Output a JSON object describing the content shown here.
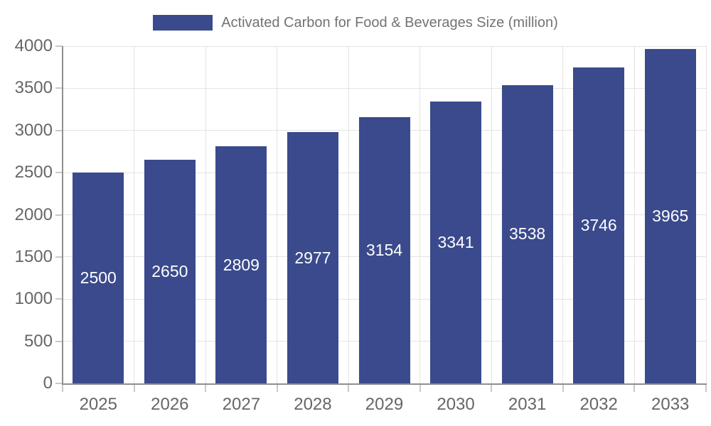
{
  "legend": {
    "label": "Activated Carbon for Food & Beverages Size (million)"
  },
  "colors": {
    "bar": "#3a4a8c",
    "bar_label": "#ffffff",
    "axis_line": "#8f8f8f",
    "tick": "#c9c9c9",
    "gridline": "#e3e3e3",
    "axis_text": "#666666",
    "legend_text": "#737373",
    "background": "#ffffff"
  },
  "chart_data": {
    "type": "bar",
    "title": "Activated Carbon for Food & Beverages Size (million)",
    "categories": [
      "2025",
      "2026",
      "2027",
      "2028",
      "2029",
      "2030",
      "2031",
      "2032",
      "2033"
    ],
    "values": [
      2500,
      2650,
      2809,
      2977,
      3154,
      3341,
      3538,
      3746,
      3965
    ],
    "xlabel": "",
    "ylabel": "",
    "ylim": [
      0,
      4000
    ],
    "y_ticks": [
      0,
      500,
      1000,
      1500,
      2000,
      2500,
      3000,
      3500,
      4000
    ],
    "grid": true,
    "legend_position": "top",
    "bar_labels_visible": true,
    "bar_label_position": "center"
  }
}
